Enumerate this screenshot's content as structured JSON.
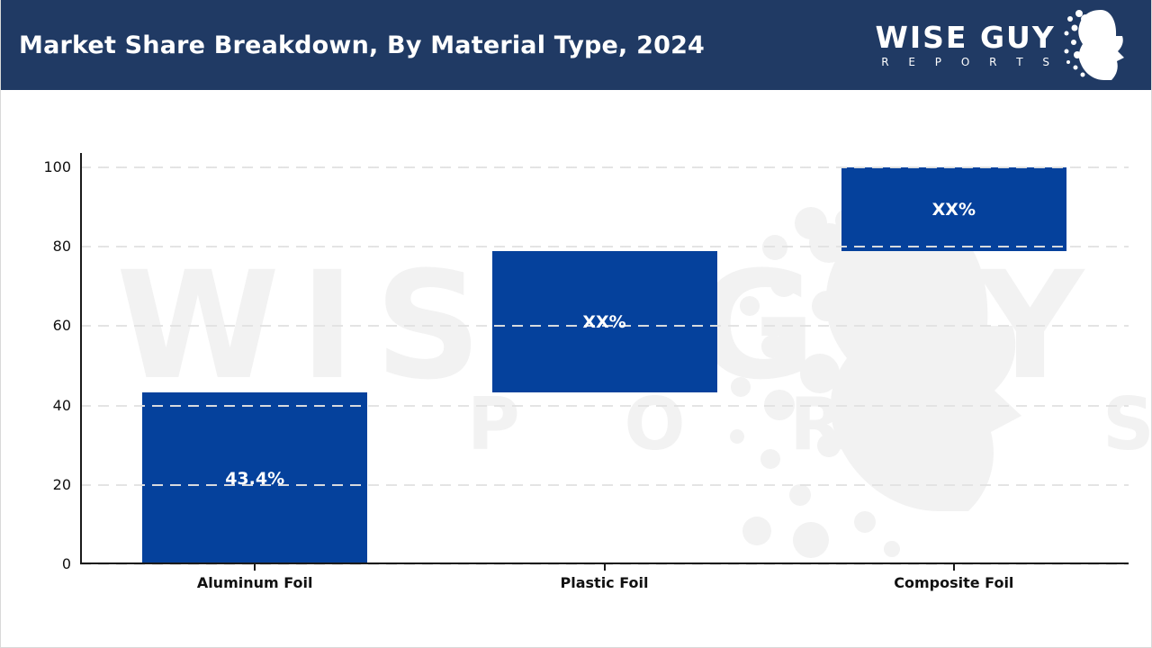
{
  "header": {
    "title": "Market Share Breakdown, By Material Type, 2024",
    "logo": {
      "line1": "WISE GUY",
      "line2": "R E P O R T S"
    }
  },
  "watermark": {
    "line1": "WISE GUY",
    "line2": "R E P O R T S"
  },
  "colors": {
    "header_bg": "#203a64",
    "bar": "#05419c",
    "grid": "#e2e2e2",
    "axis": "#1a1a1a",
    "watermark": "#f2f2f2"
  },
  "chart_data": {
    "type": "bar",
    "subtype": "waterfall-stacked-segments",
    "title": "Market Share Breakdown, By Material Type, 2024",
    "xlabel": "",
    "ylabel": "",
    "categories": [
      "Aluminum Foil",
      "Plastic Foil",
      "Composite Foil"
    ],
    "bars": [
      {
        "category": "Aluminum Foil",
        "start": 0,
        "end": 43.4,
        "label": "43.4%"
      },
      {
        "category": "Plastic Foil",
        "start": 43.4,
        "end": 79,
        "label": "XX%"
      },
      {
        "category": "Composite Foil",
        "start": 79,
        "end": 100,
        "label": "XX%"
      }
    ],
    "yticks": [
      0,
      20,
      40,
      60,
      80,
      100
    ],
    "ylim": [
      0,
      100
    ],
    "grid": true,
    "grid_style": "dashed",
    "legend": "none"
  }
}
